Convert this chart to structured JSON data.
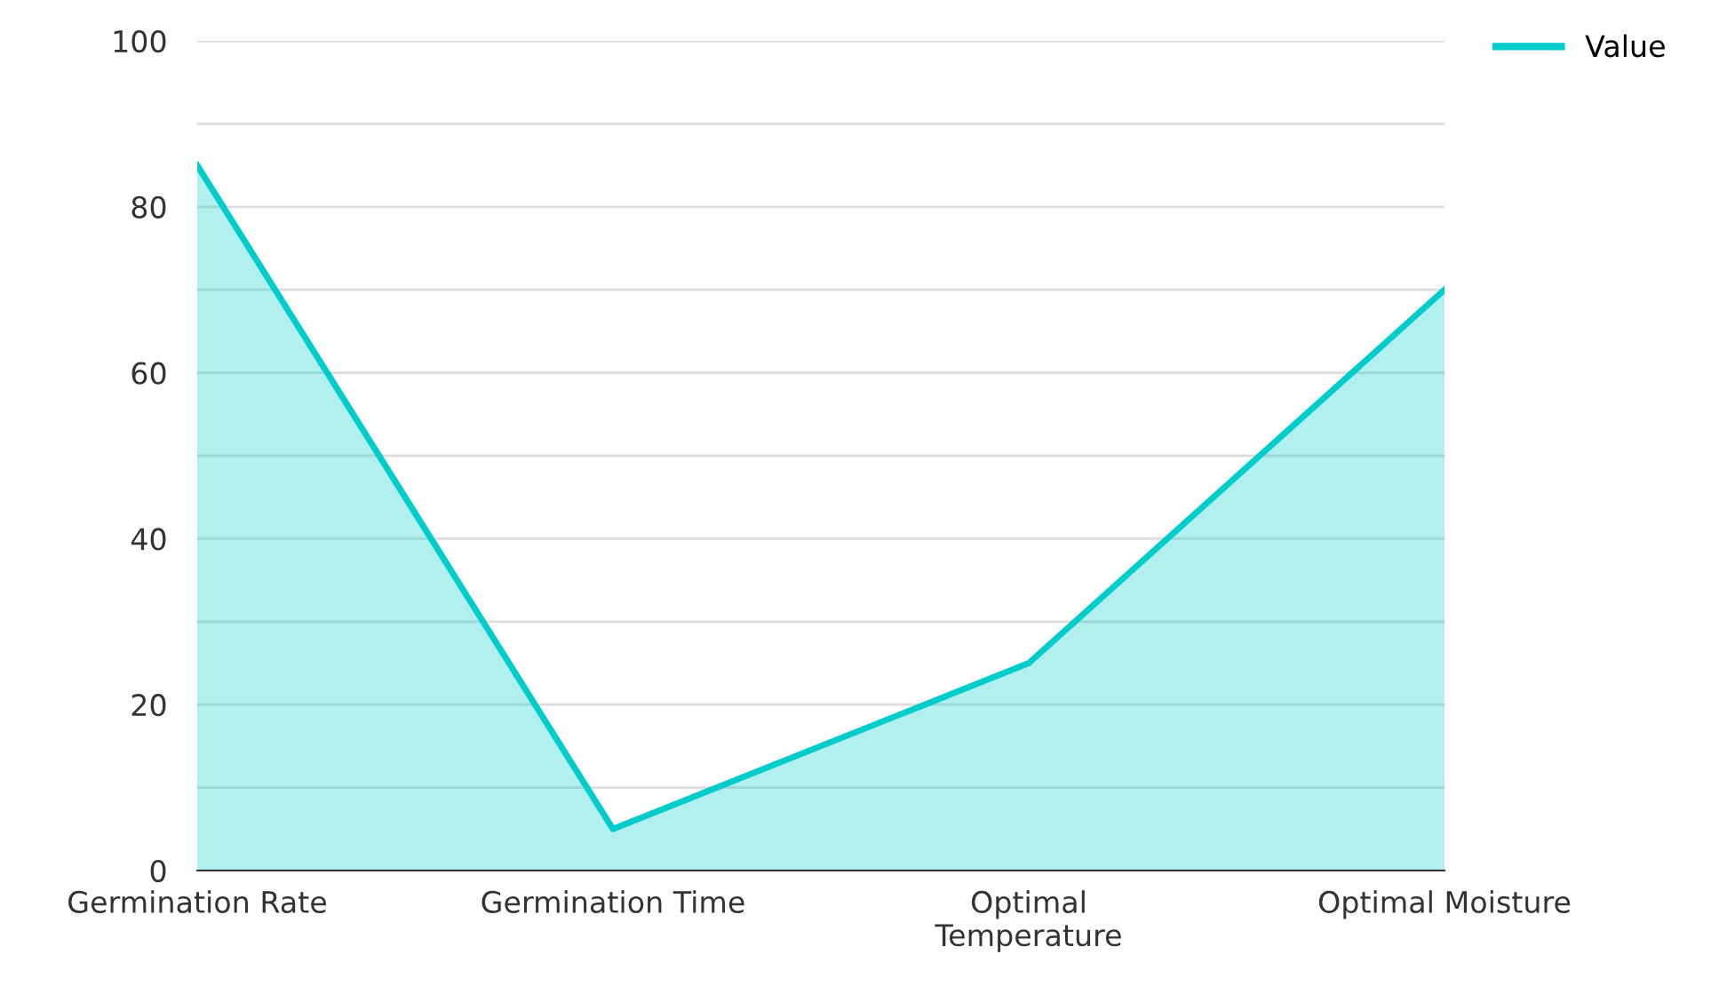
{
  "chart_data": {
    "type": "area",
    "categories": [
      "Germination Rate",
      "Germination Time",
      "Optimal Temperature",
      "Optimal Moisture"
    ],
    "series": [
      {
        "name": "Value",
        "color": "#00cccc",
        "values": [
          85,
          5,
          25,
          70
        ]
      }
    ],
    "ylim": [
      0,
      100
    ],
    "yticks": [
      0,
      {
        "value": 10,
        "label": null
      },
      20,
      {
        "value": 30,
        "label": null
      },
      40,
      {
        "value": 50,
        "label": null
      },
      60,
      {
        "value": 70,
        "label": null
      },
      80,
      {
        "value": 90,
        "label": null
      },
      100
    ],
    "grid": "y",
    "legend": "top right"
  }
}
